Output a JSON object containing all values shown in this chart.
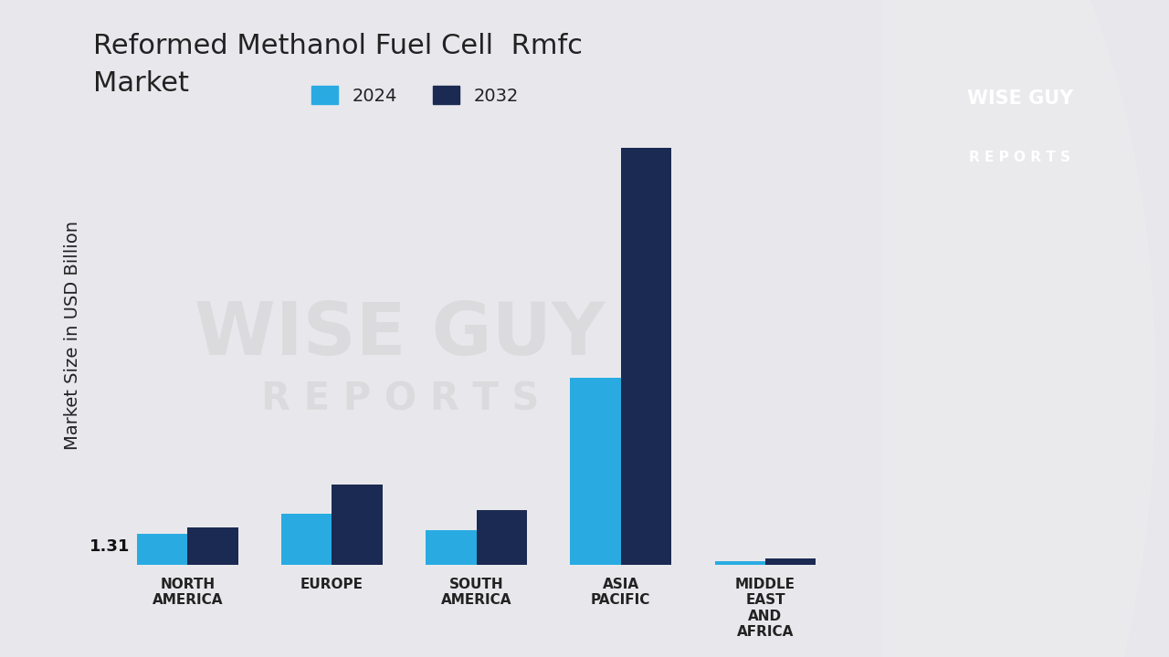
{
  "title": "Reformed Methanol Fuel Cell  Rmfc\nMarket",
  "ylabel": "Market Size in USD Billion",
  "categories": [
    "NORTH\nAMERICA",
    "EUROPE",
    "SOUTH\nAMERICA",
    "ASIA\nPACIFIC",
    "MIDDLE\nEAST\nAND\nAFRICA"
  ],
  "values_2024": [
    1.1,
    1.8,
    1.2,
    6.5,
    0.12
  ],
  "values_2032": [
    1.31,
    2.8,
    1.9,
    14.5,
    0.22
  ],
  "color_2024": "#29ABE2",
  "color_2032": "#1B2A52",
  "bar_annotation": "1.31",
  "bar_annotation_index": 0,
  "background_color": "#E8E8EC",
  "right_panel_color": "#1B2A52",
  "title_color": "#222222",
  "legend_labels": [
    "2024",
    "2032"
  ],
  "bar_width": 0.35,
  "ylim": [
    0,
    16
  ],
  "title_fontsize": 22,
  "axis_label_fontsize": 14,
  "tick_fontsize": 11,
  "annotation_fontsize": 13
}
